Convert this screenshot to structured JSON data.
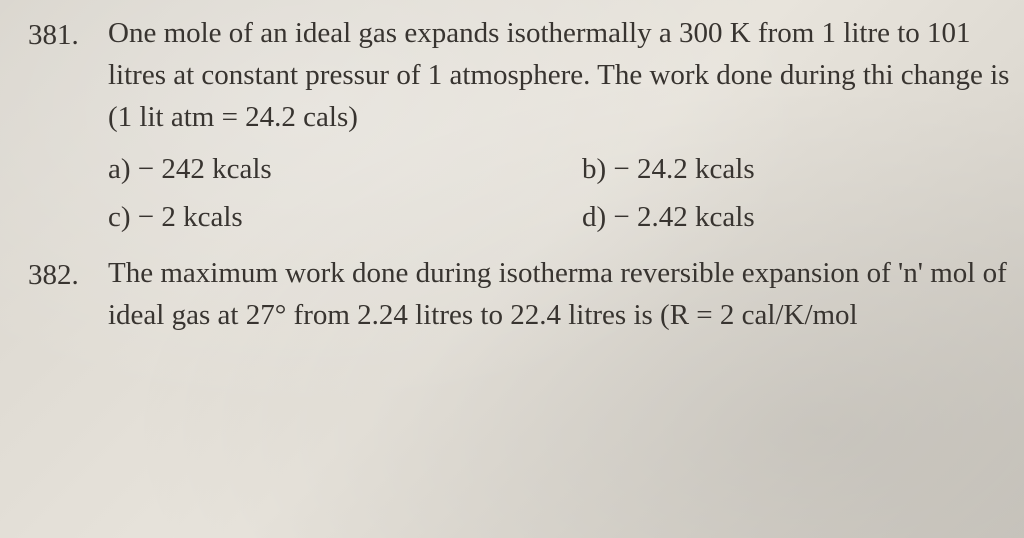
{
  "background_color": "#dcd8d0",
  "text_color": "#383430",
  "font_family": "Georgia, Times New Roman, serif",
  "font_size_pt": 22,
  "questions": [
    {
      "number": "381.",
      "stem": "One mole of an ideal gas expands isothermally a 300 K from 1 litre to 101 litres at constant pressur of 1 atmosphere. The work done during thi change is (1 lit atm = 24.2 cals)",
      "options": {
        "a": "a) − 242 kcals",
        "b": "b) − 24.2 kcals",
        "c": "c) − 2 kcals",
        "d": "d) − 2.42 kcals"
      }
    },
    {
      "number": "382.",
      "stem": "The maximum work done during isotherma reversible expansion of 'n' mol of ideal gas at 27° from 2.24 litres to 22.4 litres is (R = 2 cal/K/mol"
    }
  ]
}
